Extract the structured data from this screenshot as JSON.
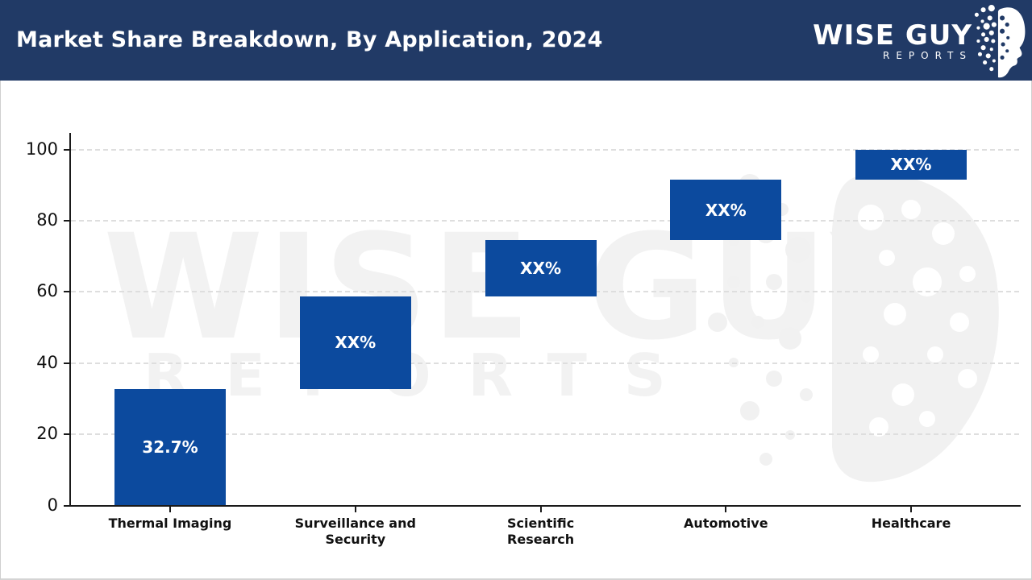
{
  "header": {
    "title": "Market Share Breakdown, By Application, 2024",
    "logo": {
      "name_line": "WISE GUY",
      "sub_line": "REPORTS"
    }
  },
  "watermark": {
    "name_line": "WISE GUY",
    "sub_line": "REPORTS"
  },
  "colors": {
    "header_bg": "#213A66",
    "bar_fill": "#0C4A9E",
    "grid_line": "#DEDEDE",
    "axis_line": "#1A1A1A",
    "bar_label_text": "#FFFFFF",
    "watermark": "#F2F2F2",
    "page_border": "#CFCFCF"
  },
  "chart_data": {
    "type": "bar",
    "subtype": "waterfall (floating stacked-range bars)",
    "title": "Market Share Breakdown, By Application, 2024",
    "categories": [
      "Thermal Imaging",
      "Surveillance and Security",
      "Scientific Research",
      "Automotive",
      "Healthcare"
    ],
    "series": [
      {
        "name": "Market share (%)",
        "segments": [
          {
            "category": "Thermal Imaging",
            "start": 0,
            "end": 32.7,
            "label": "32.7%"
          },
          {
            "category": "Surveillance and Security",
            "start": 32.7,
            "end": 58.8,
            "label": "XX%"
          },
          {
            "category": "Scientific Research",
            "start": 58.8,
            "end": 74.5,
            "label": "XX%"
          },
          {
            "category": "Automotive",
            "start": 74.5,
            "end": 91.5,
            "label": "XX%"
          },
          {
            "category": "Healthcare",
            "start": 91.5,
            "end": 100,
            "label": "XX%"
          }
        ]
      }
    ],
    "xlabel": "",
    "ylabel": "",
    "ylim": [
      0,
      104.8
    ],
    "yticks": [
      0,
      20,
      40,
      60,
      80,
      100
    ],
    "grid": "horizontal dashed gridlines",
    "legend": "none",
    "x_tick_label_lines": [
      [
        "Thermal Imaging"
      ],
      [
        "Surveillance and",
        "Security"
      ],
      [
        "Scientific",
        "Research"
      ],
      [
        "Automotive"
      ],
      [
        "Healthcare"
      ]
    ]
  }
}
